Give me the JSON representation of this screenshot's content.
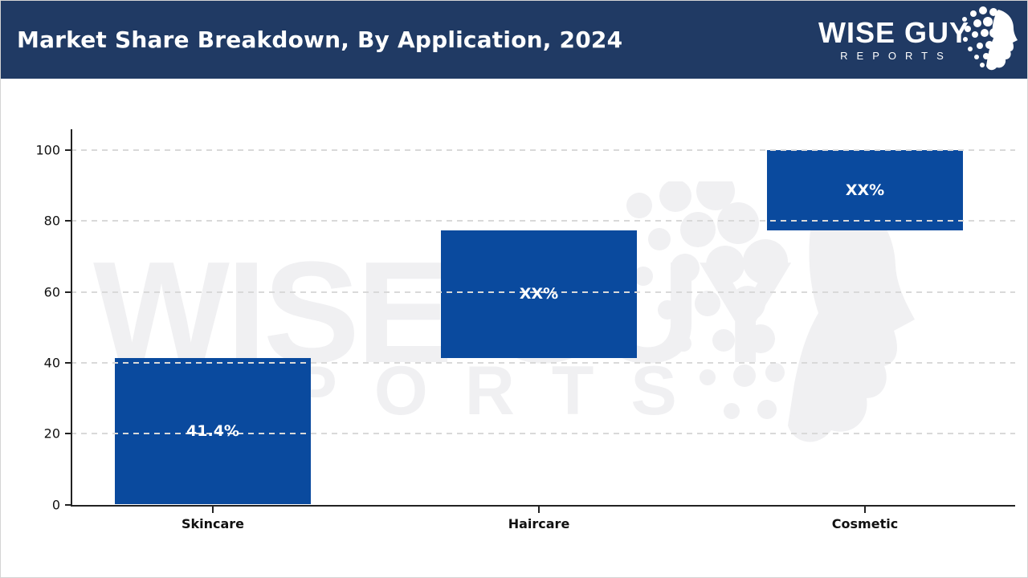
{
  "header": {
    "title": "Market Share Breakdown, By Application, 2024",
    "logo": {
      "line1": "WISE GUY",
      "line2": "REPORTS"
    }
  },
  "watermark": {
    "line1": "WISE GUY",
    "line2": "REPORTS"
  },
  "colors": {
    "header_bg": "#203a64",
    "bar": "#0a4a9e",
    "bar_label": "#ffffff",
    "gridline": "#d9d9d9",
    "axis": "#222222",
    "watermark": "#f0f0f2"
  },
  "chart_data": {
    "type": "bar",
    "variant": "waterfall",
    "title": "Market Share Breakdown, By Application, 2024",
    "categories": [
      "Skincare",
      "Haircare",
      "Cosmetic"
    ],
    "series": [
      {
        "name": "Market Share (%)",
        "segments": [
          {
            "category": "Skincare",
            "start": 0,
            "end": 41.4,
            "label": "41.4%"
          },
          {
            "category": "Haircare",
            "start": 41.4,
            "end": 77.3,
            "label": "XX%"
          },
          {
            "category": "Cosmetic",
            "start": 77.3,
            "end": 100,
            "label": "XX%"
          }
        ]
      }
    ],
    "ylim": [
      0,
      105
    ],
    "yticks": [
      0,
      20,
      40,
      60,
      80,
      100
    ],
    "xlabel": "",
    "ylabel": "",
    "grid": "horizontal-dashed-above-bars",
    "legend": "none"
  }
}
